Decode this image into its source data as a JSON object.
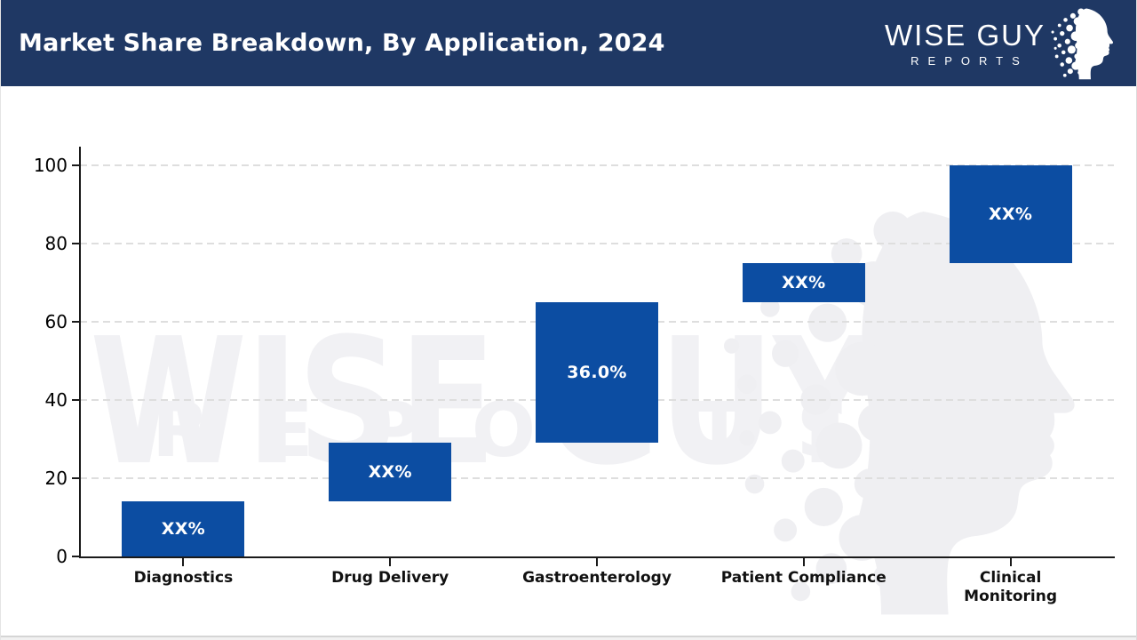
{
  "header": {
    "title": "Market Share Breakdown, By Application, 2024",
    "bg_color": "#1F3864",
    "logo": {
      "line1": "WISE GUY",
      "line2": "REPORTS"
    }
  },
  "watermark": {
    "line1": "WISE GUY",
    "line2": "REPORTS"
  },
  "chart_data": {
    "type": "bar",
    "variant": "floating-segment-waterfall",
    "title": "Market Share Breakdown, By Application, 2024",
    "categories": [
      "Diagnostics",
      "Drug Delivery",
      "Gastroenterology",
      "Patient Compliance",
      "Clinical\nMonitoring"
    ],
    "bars": [
      {
        "category": "Diagnostics",
        "start": 0,
        "end": 14,
        "label": "XX%"
      },
      {
        "category": "Drug Delivery",
        "start": 14,
        "end": 29,
        "label": "XX%"
      },
      {
        "category": "Gastroenterology",
        "start": 29,
        "end": 65,
        "label": "36.0%"
      },
      {
        "category": "Patient Compliance",
        "start": 65,
        "end": 75,
        "label": "XX%"
      },
      {
        "category": "Clinical Monitoring",
        "start": 75,
        "end": 100,
        "label": "XX%"
      }
    ],
    "yticks": [
      0,
      20,
      40,
      60,
      80,
      100
    ],
    "ylim": [
      0,
      105
    ],
    "xlabel": "",
    "ylabel": "",
    "grid": "horizontal-dashed",
    "legend": null,
    "bar_color": "#0C4DA2",
    "units": "%"
  }
}
